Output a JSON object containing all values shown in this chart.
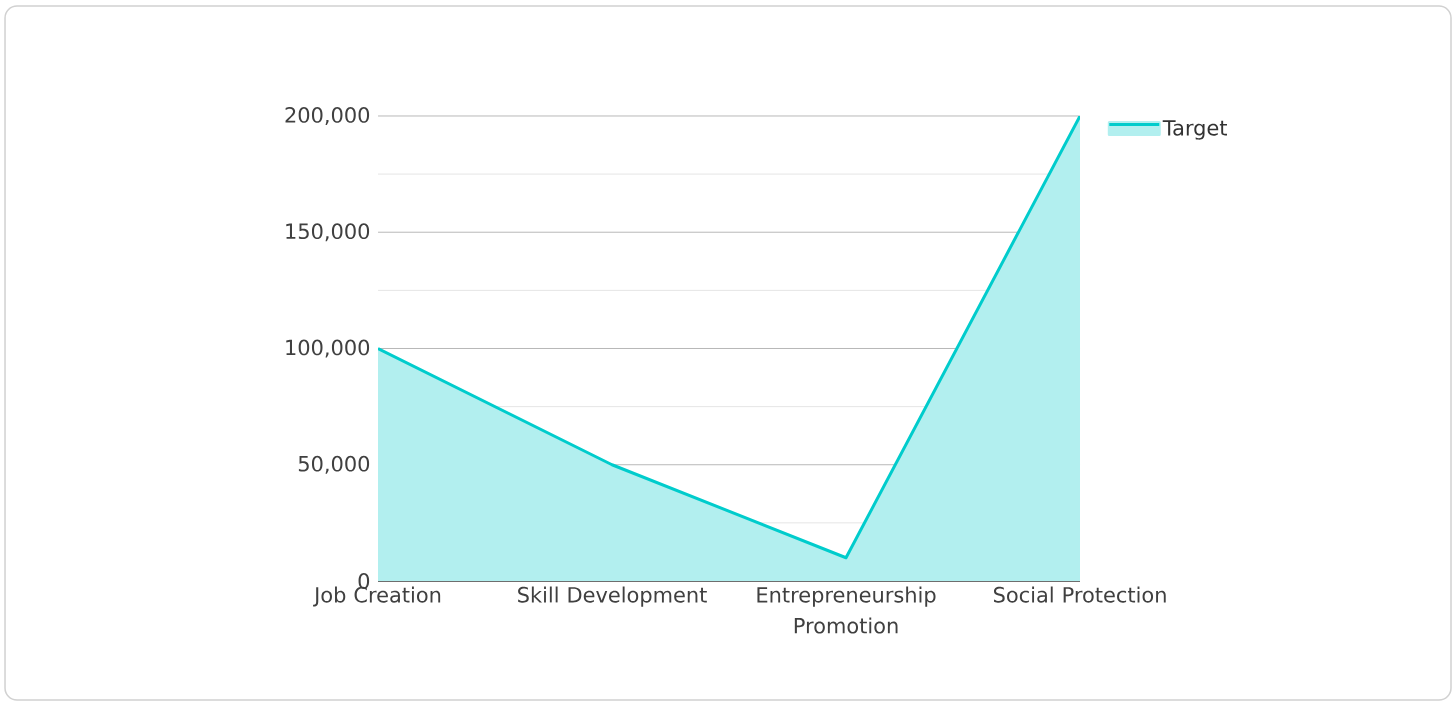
{
  "chart_data": {
    "type": "area",
    "categories": [
      "Job Creation",
      "Skill Development",
      "Entrepreneurship Promotion",
      "Social Protection"
    ],
    "series": [
      {
        "name": "Target",
        "color": "#00cccc",
        "values": [
          100000,
          50000,
          10000,
          200000
        ]
      }
    ],
    "ylim": [
      0,
      200000
    ],
    "yticks": [
      {
        "value": 0,
        "label": "0"
      },
      {
        "value": 25000,
        "label": null
      },
      {
        "value": 50000,
        "label": "50,000"
      },
      {
        "value": 75000,
        "label": null
      },
      {
        "value": 100000,
        "label": "100,000"
      },
      {
        "value": 125000,
        "label": null
      },
      {
        "value": 150000,
        "label": "150,000"
      },
      {
        "value": 175000,
        "label": null
      },
      {
        "value": 200000,
        "label": "200,000"
      }
    ],
    "grid": "y",
    "legend": "top right"
  }
}
